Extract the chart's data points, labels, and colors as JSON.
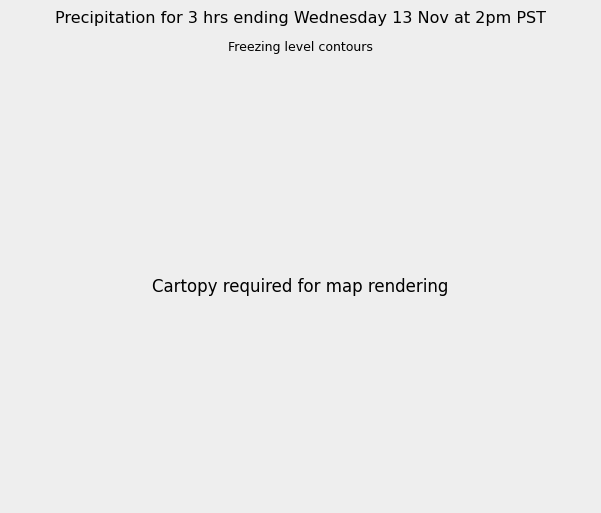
{
  "title": "Precipitation for 3 hrs ending Wednesday 13 Nov at 2pm PST",
  "subtitle": "Freezing level contours",
  "title_fontsize": 11.5,
  "subtitle_fontsize": 9,
  "fig_width": 6.01,
  "fig_height": 5.13,
  "dpi": 100,
  "ocean_color": "#c5d5ed",
  "land_color_main": "#a09080",
  "land_color_dark": "#8a7a6a",
  "coast_color": "#111111",
  "header_color": "#eeeeee",
  "contour_color": "#cc0000",
  "precip_light": "#b8c8e8",
  "precip_mid": "#9090c0",
  "precip_dark": "#5060a0",
  "typhoon_center": "#3040a0"
}
